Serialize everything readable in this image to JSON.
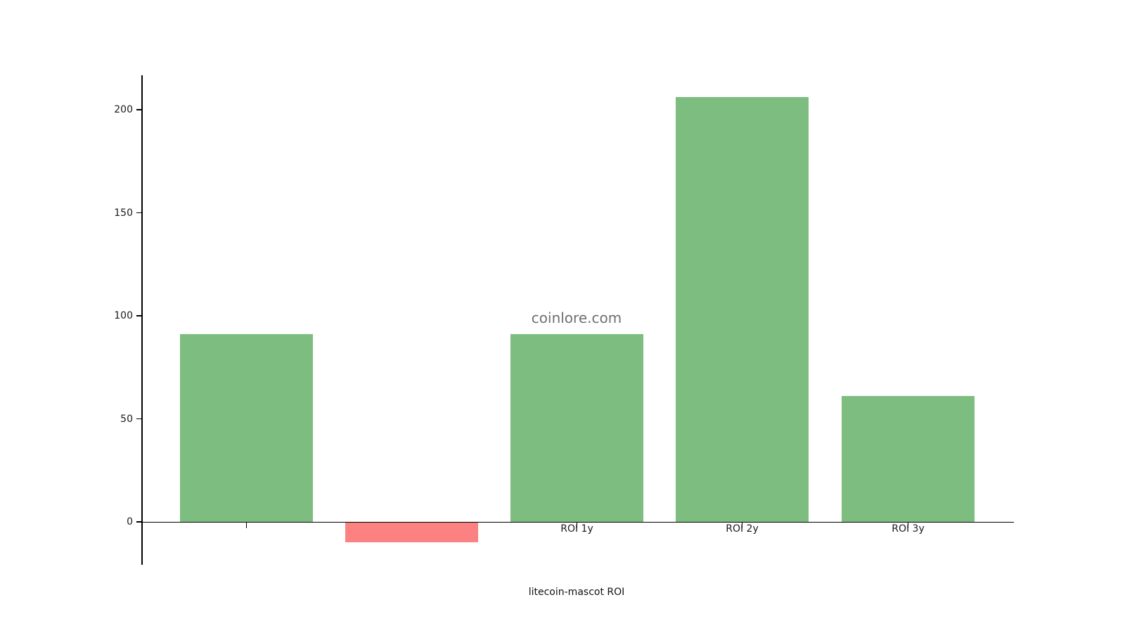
{
  "chart_data": {
    "type": "bar",
    "title": "",
    "xlabel": "litecoin-mascot ROI",
    "ylabel": "",
    "watermark": "coinlore.com",
    "categories": [
      "",
      "",
      "ROI 1y",
      "ROI 2y",
      "ROI 3y"
    ],
    "values": [
      91,
      -9.6,
      91,
      206,
      61
    ],
    "bar_colors": [
      "#7dbe80",
      "#fc8181",
      "#7dbe80",
      "#7dbe80",
      "#7dbe80"
    ],
    "positive_color": "#7dbe80",
    "negative_color": "#fc8181",
    "yticks": [
      0,
      50,
      100,
      150,
      200
    ],
    "ylim": [
      -20.4,
      216.9
    ],
    "grid": false,
    "legend_position": "none",
    "axis_color": "#000000",
    "tick_text_color": "#1a1a1a",
    "watermark_color": "#6f6f6f"
  }
}
